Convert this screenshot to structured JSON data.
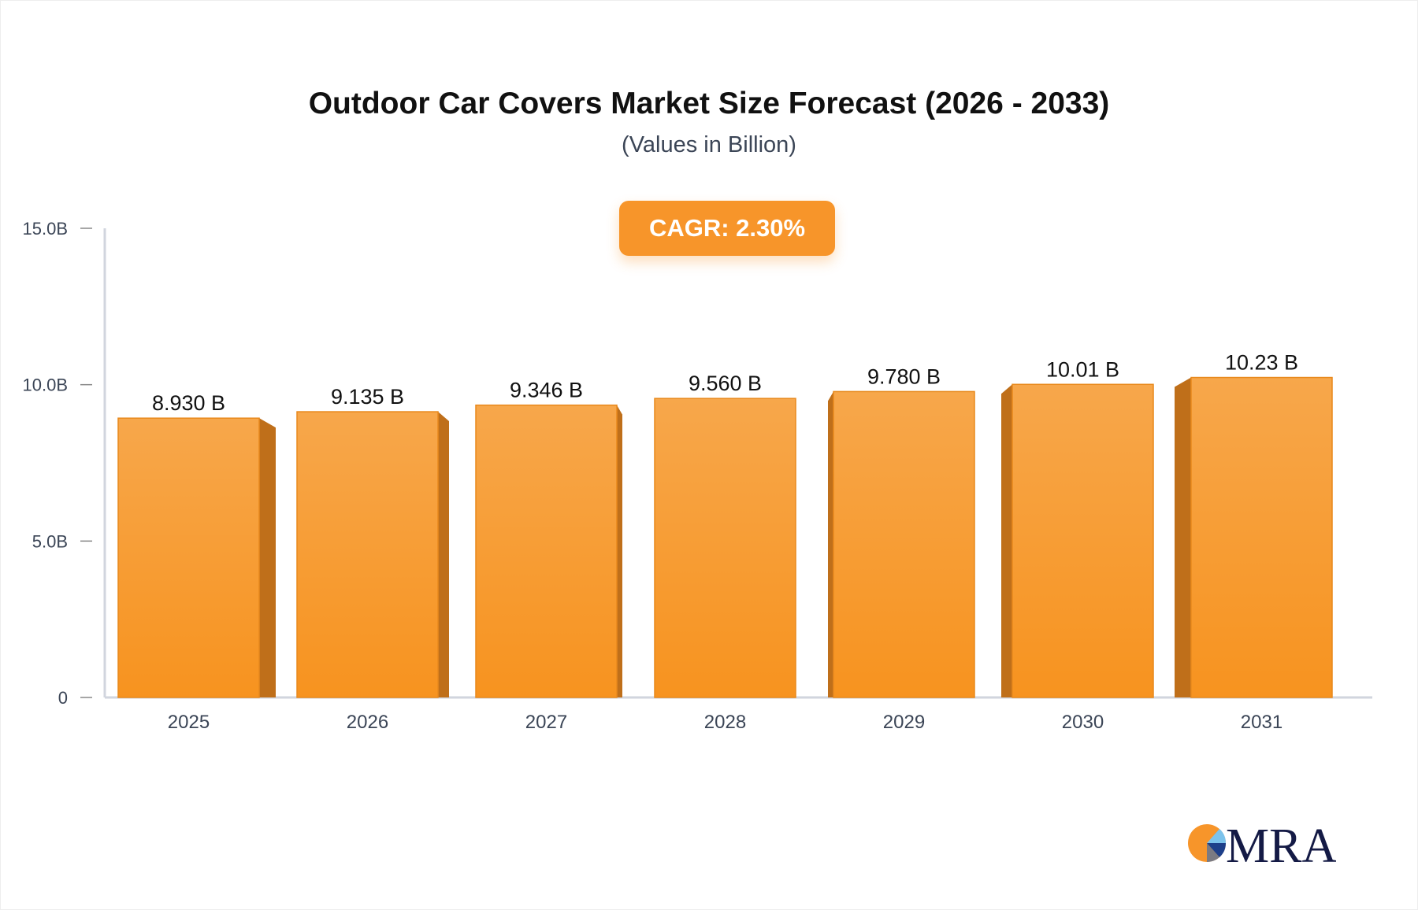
{
  "chart_data": {
    "type": "bar",
    "title": "Outdoor Car Covers Market Size Forecast (2026 - 2033)",
    "subtitle": "(Values in Billion)",
    "annotation": "CAGR: 2.30%",
    "categories": [
      "2025",
      "2026",
      "2027",
      "2028",
      "2029",
      "2030",
      "2031"
    ],
    "values": [
      8.93,
      9.135,
      9.346,
      9.56,
      9.78,
      10.01,
      10.23
    ],
    "data_labels": [
      "8.930 B",
      "9.135 B",
      "9.346 B",
      "9.560 B",
      "9.780 B",
      "10.01 B",
      "10.23 B"
    ],
    "ylim": [
      0,
      15
    ],
    "yticks": [
      0,
      5,
      10,
      15
    ],
    "ytick_labels": [
      "0",
      "5.0B",
      "10.0B",
      "15.0B"
    ],
    "xlabel": "",
    "ylabel": "",
    "grid": false,
    "colors": {
      "bar_top": "#f7a74b",
      "bar_bottom": "#f7931f",
      "bar_side": "#bf6f1a",
      "axis": "#d1d5de",
      "accent": "#f7952a"
    }
  },
  "logo": {
    "text": "MRA"
  }
}
